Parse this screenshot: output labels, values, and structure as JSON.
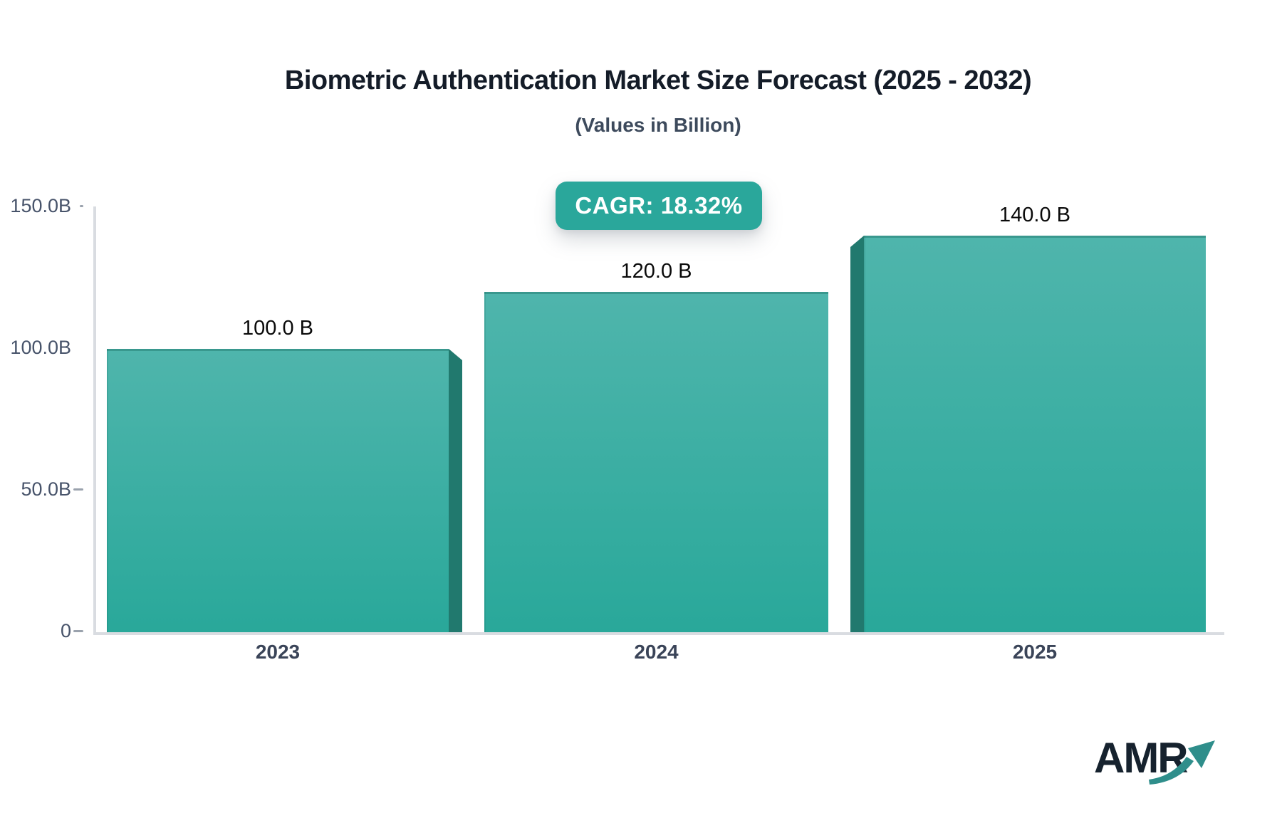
{
  "title": "Biometric Authentication Market Size Forecast (2025 - 2032)",
  "subtitle": "(Values in Billion)",
  "badge": {
    "label": "CAGR: 18.32%"
  },
  "chart_data": {
    "type": "bar",
    "title": "Biometric Authentication Market Size Forecast (2025 - 2032)",
    "subtitle": "(Values in Billion)",
    "annotation": "CAGR: 18.32%",
    "categories": [
      "2023",
      "2024",
      "2025"
    ],
    "values": [
      100.0,
      120.0,
      140.0
    ],
    "value_labels": [
      "100.0 B",
      "120.0 B",
      "140.0 B"
    ],
    "xlabel": "",
    "ylabel": "",
    "ylim": [
      0,
      150
    ],
    "y_ticks": [
      {
        "label": "150.0B",
        "value": 150
      },
      {
        "label": "100.0B",
        "value": 100
      },
      {
        "label": "50.0B",
        "value": 50
      },
      {
        "label": "0",
        "value": 0
      }
    ],
    "grid": false,
    "legend": false
  },
  "logo": {
    "text": "AMR"
  },
  "colors": {
    "bar_top": "#4fb5ac",
    "bar_bottom": "#29a89a",
    "bar_edge": "#21796e",
    "badge_bg": "#2aa79b",
    "axis_line": "#d9dce1",
    "tick": "#9aa2ad",
    "title_text": "#141c28",
    "subtitle_text": "#3d4a5c",
    "axis_label": "#47536a",
    "x_label": "#3a4458",
    "value_label": "#0a0a0a",
    "logo_text": "#16222e",
    "logo_arrow": "#2f8e8b"
  }
}
